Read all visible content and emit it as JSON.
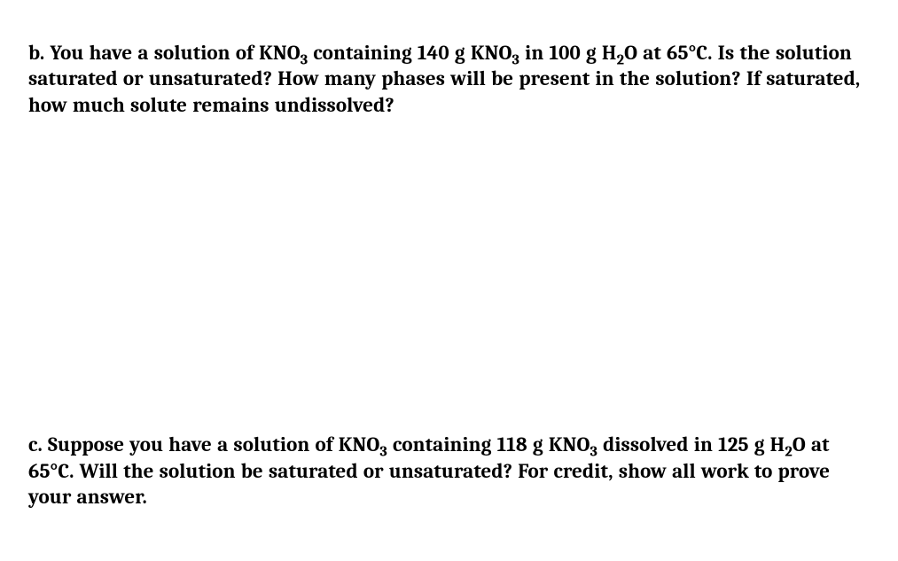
{
  "questions": {
    "b": {
      "label": "b.",
      "pre1": " You have a solution of KNO",
      "sub1": "3",
      "mid1": " containing 140 g KNO",
      "sub2": "3",
      "mid2": " in 100 g H",
      "sub3": "2",
      "post1": "O at 65°C. Is the solution saturated or unsaturated? How many phases will be present in the solution? If saturated, how much solute remains undissolved?"
    },
    "c": {
      "label": "c.",
      "pre1": " Suppose you have a solution of KNO",
      "sub1": "3",
      "mid1": " containing 118 g KNO",
      "sub2": "3",
      "mid2": " dissolved in 125 g H",
      "sub3": "2",
      "post1": "O at 65°C. Will the solution be saturated or unsaturated? For credit, show all work to prove your answer."
    }
  },
  "style": {
    "font_size_pt": 17,
    "font_weight": 700,
    "text_color": "#000000",
    "background_color": "#ffffff",
    "font_family": "Cambria/Georgia/serif"
  }
}
